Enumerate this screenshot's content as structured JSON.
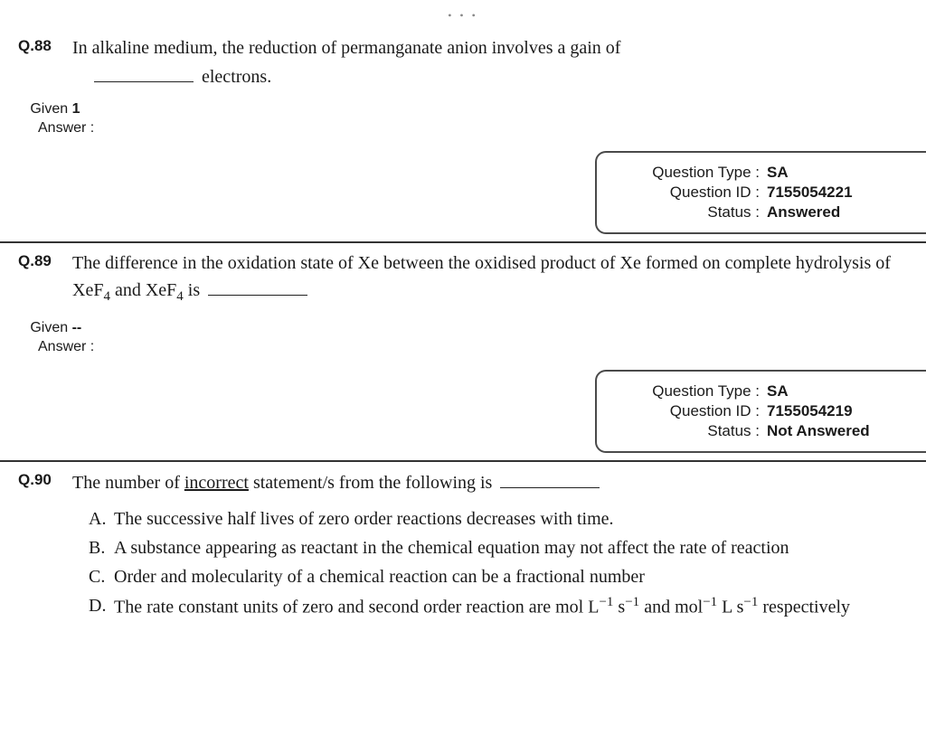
{
  "dots": "• • •",
  "labels": {
    "given": "Given",
    "answer": "Answer :",
    "question_type": "Question Type :",
    "question_id": "Question ID :",
    "status": "Status :"
  },
  "q88": {
    "number": "Q.88",
    "text_pre": "In alkaline medium, the reduction of permanganate anion involves a gain of",
    "text_post": "electrons.",
    "given_answer": "1",
    "info": {
      "type": "SA",
      "id": "7155054221",
      "status": "Answered"
    }
  },
  "q89": {
    "number": "Q.89",
    "text_a": "The difference in the oxidation state of Xe between the oxidised product of Xe formed on complete hydrolysis of XeF",
    "sub1": "4",
    "text_b": " and XeF",
    "sub2": "4",
    "text_c": " is ",
    "given_answer": "--",
    "info": {
      "type": "SA",
      "id": "7155054219",
      "status": "Not Answered"
    }
  },
  "q90": {
    "number": "Q.90",
    "stem_a": "The number of ",
    "stem_underlined": "incorrect",
    "stem_b": " statement/s from the following is ",
    "options": {
      "A": {
        "letter": "A.",
        "text": "The successive half lives of zero order reactions decreases with time."
      },
      "B": {
        "letter": "B.",
        "text": "A substance appearing as reactant in the chemical equation may not affect the rate of reaction"
      },
      "C": {
        "letter": "C.",
        "text": "Order and molecularity of a chemical reaction can be a fractional number"
      },
      "D": {
        "letter": "D.",
        "t1": "The rate constant units of zero and second order reaction are mol L",
        "s1": "−1",
        "t2": " s",
        "s2": "−1",
        "t3": " and mol",
        "s3": "−1",
        "t4": " L s",
        "s4": "−1",
        "t5": " respectively"
      }
    }
  }
}
